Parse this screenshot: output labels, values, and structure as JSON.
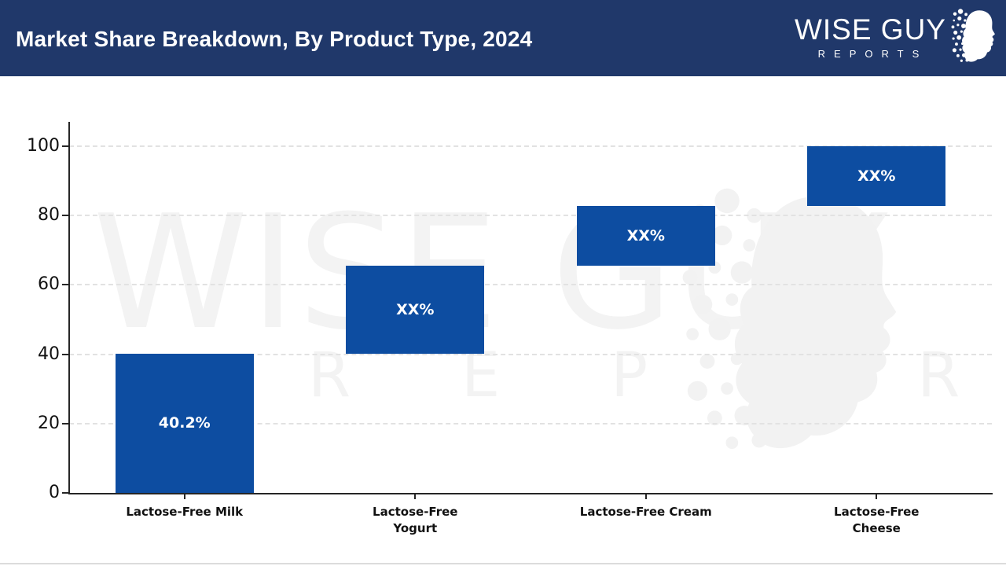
{
  "header": {
    "title": "Market Share Breakdown, By Product Type, 2024",
    "bg_color": "#20386a",
    "text_color": "#ffffff",
    "logo": {
      "wordmark": "WISE GUY",
      "subtext": "REPORTS"
    }
  },
  "watermark": {
    "wordmark": "WISE GUY",
    "subtext": "R E P O R T S"
  },
  "chart_data": {
    "type": "bar",
    "variant": "floating-waterfall",
    "title": "Market Share Breakdown, By Product Type, 2024",
    "categories": [
      "Lactose-Free Milk",
      "Lactose-Free Yogurt",
      "Lactose-Free Cream",
      "Lactose-Free Cheese"
    ],
    "category_lines": [
      [
        "Lactose-Free Milk"
      ],
      [
        "Lactose-Free",
        "Yogurt"
      ],
      [
        "Lactose-Free Cream"
      ],
      [
        "Lactose-Free",
        "Cheese"
      ]
    ],
    "segments": [
      {
        "category": "Lactose-Free Milk",
        "start": 0,
        "end": 40.2,
        "label": "40.2%"
      },
      {
        "category": "Lactose-Free Yogurt",
        "start": 40.2,
        "end": 65.6,
        "label": "XX%"
      },
      {
        "category": "Lactose-Free Cream",
        "start": 65.6,
        "end": 82.7,
        "label": "XX%"
      },
      {
        "category": "Lactose-Free Cheese",
        "start": 82.7,
        "end": 100,
        "label": "XX%"
      }
    ],
    "xlabel": "",
    "ylabel": "",
    "ylim": [
      0,
      100
    ],
    "yticks": [
      0,
      20,
      40,
      60,
      80,
      100
    ],
    "grid": {
      "horizontal": true,
      "style": "dashed",
      "color": "#e2e2e2"
    },
    "legend": null,
    "bar_color": "#0d4da1",
    "bar_label_color": "#ffffff",
    "axis_color": "#262626"
  }
}
